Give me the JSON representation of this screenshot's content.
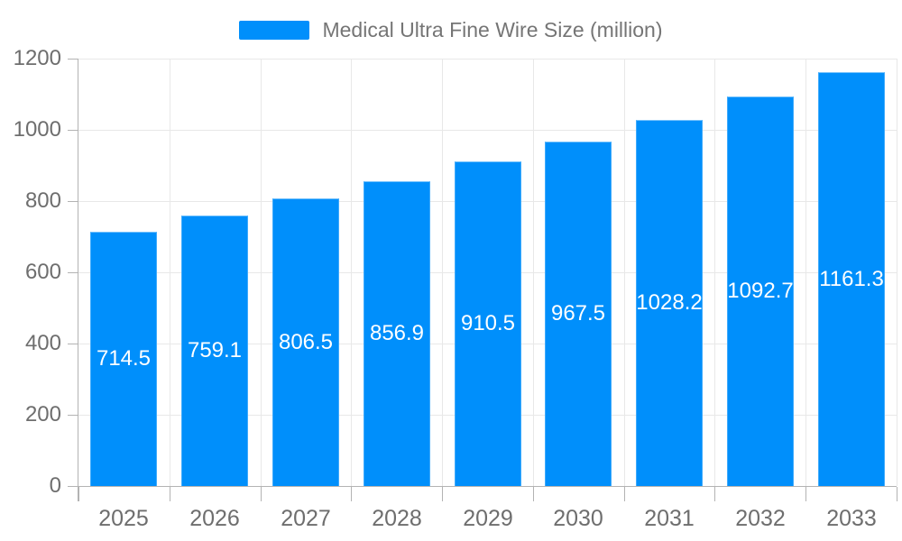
{
  "chart_data": {
    "type": "bar",
    "title": "Medical Ultra Fine Wire Size (million)",
    "categories": [
      "2025",
      "2026",
      "2027",
      "2028",
      "2029",
      "2030",
      "2031",
      "2032",
      "2033"
    ],
    "series": [
      {
        "name": "Medical Ultra Fine Wire Size (million)",
        "values": [
          714.5,
          759.1,
          806.5,
          856.9,
          910.5,
          967.5,
          1028.2,
          1092.7,
          1161.3
        ]
      }
    ],
    "value_labels": [
      "714.5",
      "759.1",
      "806.5",
      "856.9",
      "910.5",
      "967.5",
      "1028.2",
      "1092.7",
      "1161.3"
    ],
    "xlabel": "",
    "ylabel": "",
    "ylim": [
      0,
      1200
    ],
    "yticks": [
      0,
      200,
      400,
      600,
      800,
      1000,
      1200
    ],
    "grid": true,
    "legend_position": "top",
    "colors": {
      "bar": "#008FFB",
      "grid": "#e8e8e8",
      "axis_line": "#b3b3b3",
      "tick": "#b3b3b3",
      "axis_label": "#6e6e6e",
      "legend_text": "#757575",
      "value_label": "#ffffff",
      "background": "#ffffff"
    }
  }
}
